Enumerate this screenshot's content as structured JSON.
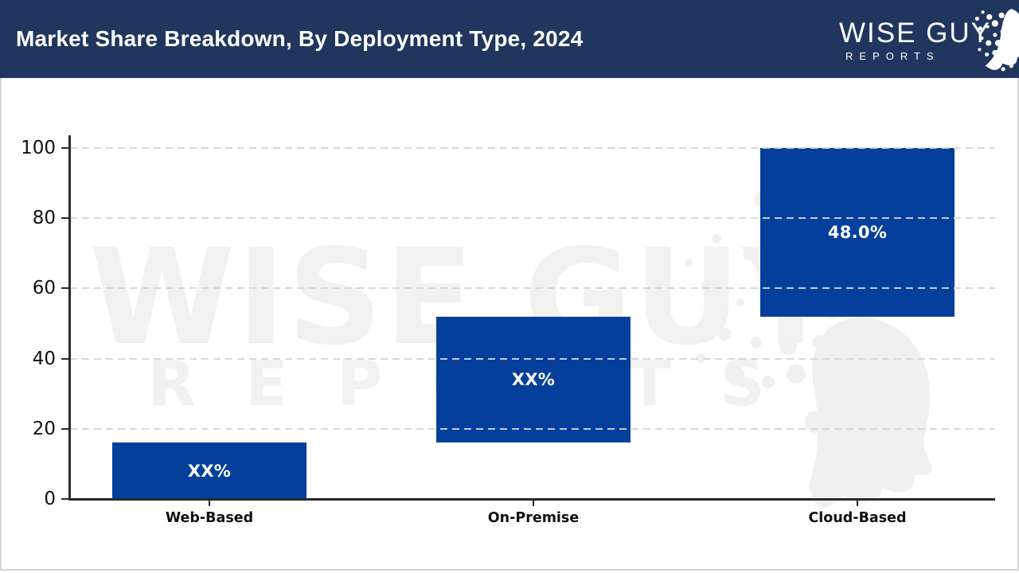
{
  "header": {
    "title": "Market Share Breakdown, By Deployment Type, 2024",
    "logo": {
      "line1": "WISE GUY",
      "line2": "REPORTS"
    },
    "bg_color": "#21365E"
  },
  "watermark": {
    "line1": "WISE GUY",
    "line2": "REPORTS"
  },
  "chart_data": {
    "type": "bar",
    "variant": "waterfall",
    "title": "Market Share Breakdown, By Deployment Type, 2024",
    "categories": [
      "Web-Based",
      "On-Premise",
      "Cloud-Based"
    ],
    "segments": [
      {
        "category": "Web-Based",
        "start": 0,
        "end": 16,
        "label": "XX%"
      },
      {
        "category": "On-Premise",
        "start": 16,
        "end": 52,
        "label": "XX%"
      },
      {
        "category": "Cloud-Based",
        "start": 52,
        "end": 100,
        "label": "48.0%"
      }
    ],
    "values_pct": [
      16,
      36,
      48
    ],
    "ylim": [
      0,
      100
    ],
    "yticks": [
      0,
      20,
      40,
      60,
      80,
      100
    ],
    "xlabel": "",
    "ylabel": "",
    "legend": "none",
    "grid": "horizontal-dashed",
    "bar_color": "#04409B",
    "bar_label_color": "#FFFFFF",
    "axis_color": "#2A2A2A"
  }
}
